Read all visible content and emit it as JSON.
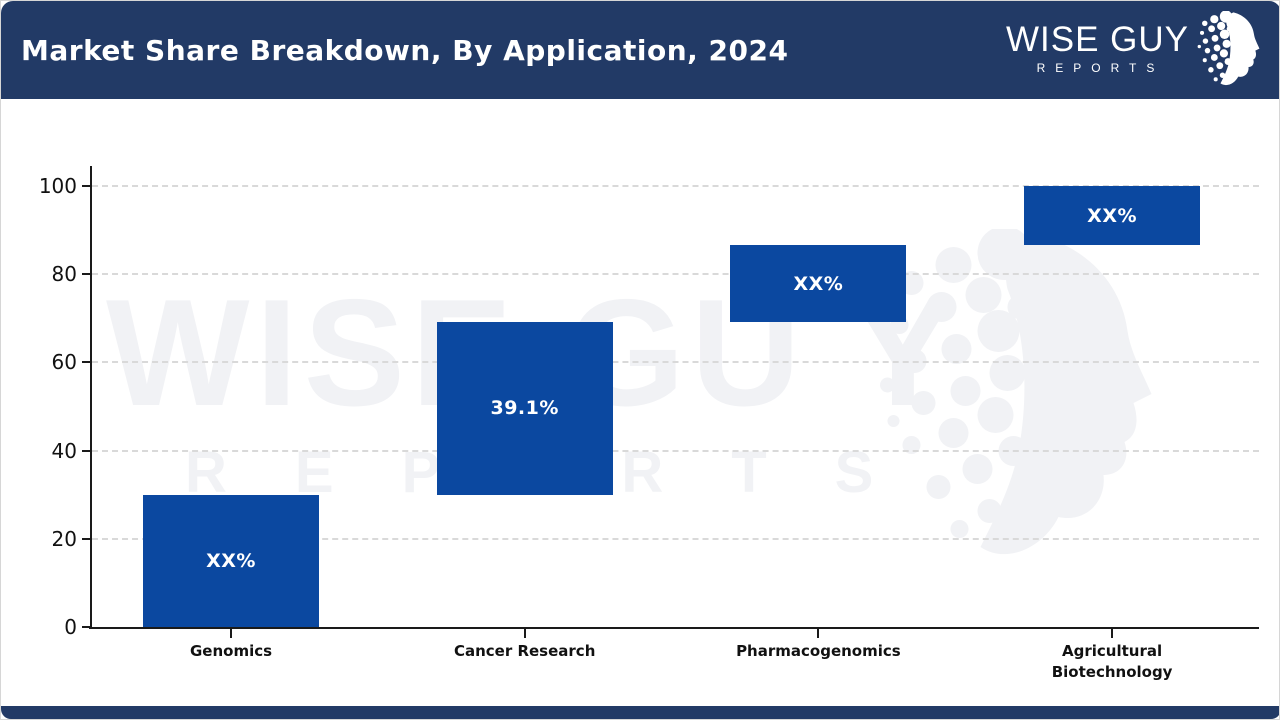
{
  "header": {
    "title": "Market Share Breakdown, By Application, 2024",
    "logo": {
      "line1": "WISE GUY",
      "line2": "REPORTS",
      "head_icon": "dotted-head-profile"
    }
  },
  "watermark": {
    "line1": "WISE GU Y",
    "line2": "REPORTS",
    "head_icon": "dotted-head-profile"
  },
  "colors": {
    "header_bg": "#223a66",
    "footer_bg": "#223a66",
    "bar_fill": "#0b48a0",
    "bar_label_text": "#ffffff",
    "grid": "#d9d9d9",
    "axis": "#1a1a1a",
    "watermark": "#f1f2f5"
  },
  "chart_data": {
    "type": "bar",
    "variant": "floating-stacked-waterfall",
    "title": "Market Share Breakdown, By Application, 2024",
    "xlabel": "",
    "ylabel": "",
    "ylim": [
      0,
      100
    ],
    "yticks": [
      0,
      20,
      40,
      60,
      80,
      100
    ],
    "grid": "horizontal-dashed",
    "legend": "none",
    "categories": [
      "Genomics",
      "Cancer Research",
      "Pharmacogenomics",
      "Agricultural Biotechnology"
    ],
    "bars": [
      {
        "category": "Genomics",
        "start": 0,
        "end": 30,
        "label": "XX%"
      },
      {
        "category": "Cancer Research",
        "start": 30,
        "end": 69.1,
        "label": "39.1%"
      },
      {
        "category": "Pharmacogenomics",
        "start": 69.1,
        "end": 86.6,
        "label": "XX%"
      },
      {
        "category": "Agricultural Biotechnology",
        "start": 86.6,
        "end": 100,
        "label": "XX%"
      }
    ]
  }
}
